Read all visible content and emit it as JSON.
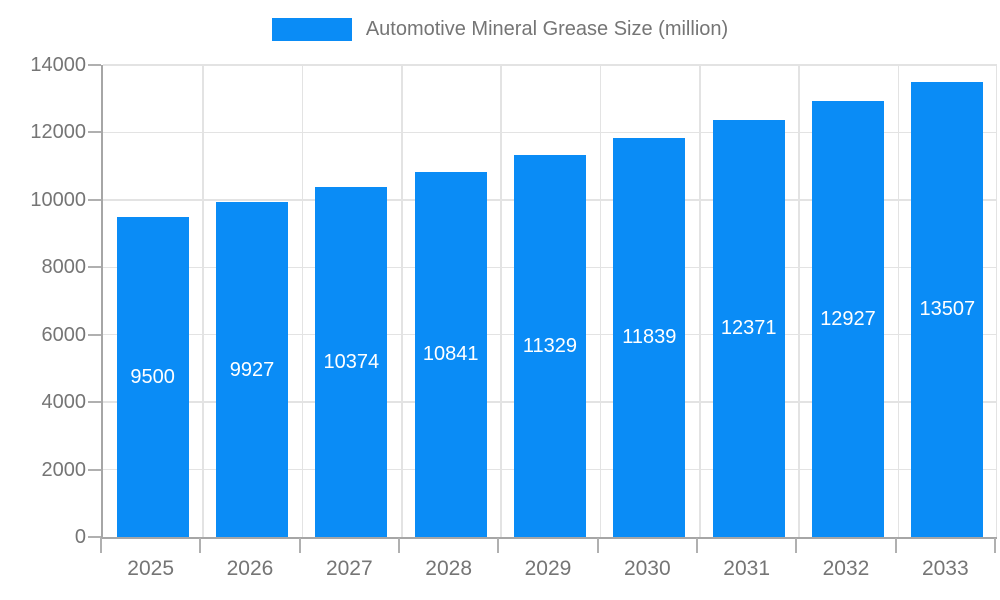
{
  "chart_data": {
    "type": "bar",
    "title": "Automotive Mineral Grease Size (million)",
    "categories": [
      "2025",
      "2026",
      "2027",
      "2028",
      "2029",
      "2030",
      "2031",
      "2032",
      "2033"
    ],
    "values": [
      9500,
      9927,
      10374,
      10841,
      11329,
      11839,
      12371,
      12927,
      13507
    ],
    "series_name": "Automotive Mineral Grease Size (million)",
    "xlabel": "",
    "ylabel": "",
    "ylim": [
      0,
      14000
    ],
    "yticks": [
      0,
      2000,
      4000,
      6000,
      8000,
      10000,
      12000,
      14000
    ],
    "grid": true,
    "legend_position": "top-center",
    "value_labels": "inside-center-white",
    "colors": {
      "bar": "#0a8cf6",
      "value_label_text": "#ffffff",
      "axis_text": "#757575",
      "legend_text": "#757575",
      "gridline": "#e3e3e3",
      "axis_line": "#a6a6a6",
      "tick_mark": "#b0b0b0",
      "background": "#ffffff"
    }
  }
}
